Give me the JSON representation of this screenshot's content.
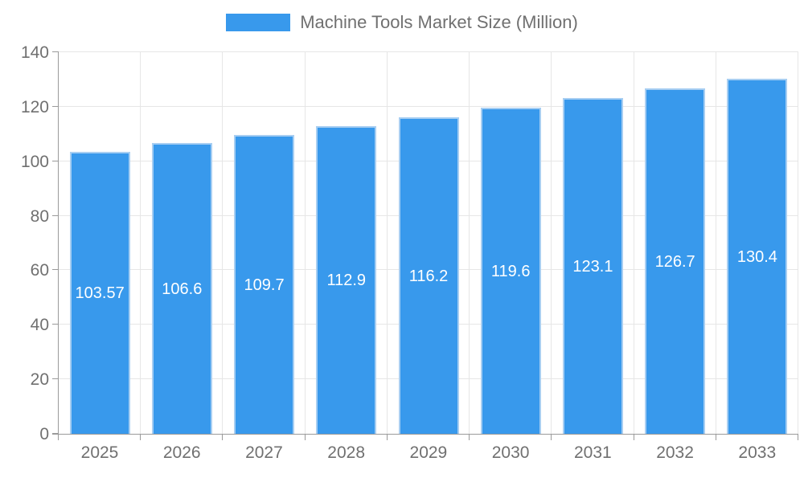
{
  "chart_data": {
    "type": "bar",
    "title": "Machine Tools Market Size (Million)",
    "categories": [
      "2025",
      "2026",
      "2027",
      "2028",
      "2029",
      "2030",
      "2031",
      "2032",
      "2033"
    ],
    "values": [
      103.57,
      106.6,
      109.7,
      112.9,
      116.2,
      119.6,
      123.1,
      126.7,
      130.4
    ],
    "value_labels": [
      "103.57",
      "106.6",
      "109.7",
      "112.9",
      "116.2",
      "119.6",
      "123.1",
      "126.7",
      "130.4"
    ],
    "xlabel": "",
    "ylabel": "",
    "ylim": [
      0,
      140
    ],
    "y_ticks": [
      0,
      20,
      40,
      60,
      80,
      100,
      120,
      140
    ],
    "grid": true,
    "legend_position": "top",
    "colors": {
      "bar_fill": "#3899EC",
      "bar_border": "#A7CEF2",
      "grid_line": "#E6E6E6",
      "axis_line": "#9A9A9A",
      "tick_text": "#707070",
      "legend_text": "#707070",
      "value_text": "#FFFFFF",
      "background": "#FFFFFF"
    }
  }
}
